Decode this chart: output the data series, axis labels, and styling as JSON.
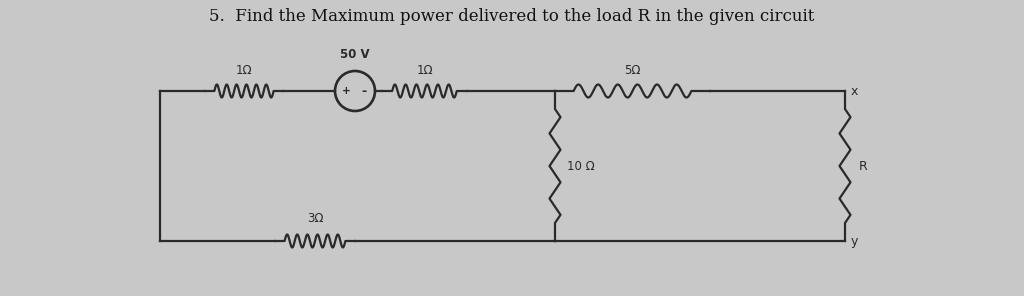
{
  "title": "5.  Find the Maximum power delivered to the load R in the given circuit",
  "title_fontsize": 12,
  "bg_color": "#c8c8c8",
  "paper_color": "#f0f0f0",
  "circuit_color": "#2a2a2a",
  "text_color": "#111111",
  "resistor_1ohm_left_label": "1Ω",
  "resistor_1ohm_right_label": "1Ω",
  "resistor_5ohm_label": "5Ω",
  "resistor_3ohm_label": "3Ω",
  "resistor_10ohm_label": "10 Ω",
  "resistor_R_label": "R",
  "source_label": "50 V",
  "node_x_label": "x",
  "node_y_label": "y",
  "lw": 1.6
}
